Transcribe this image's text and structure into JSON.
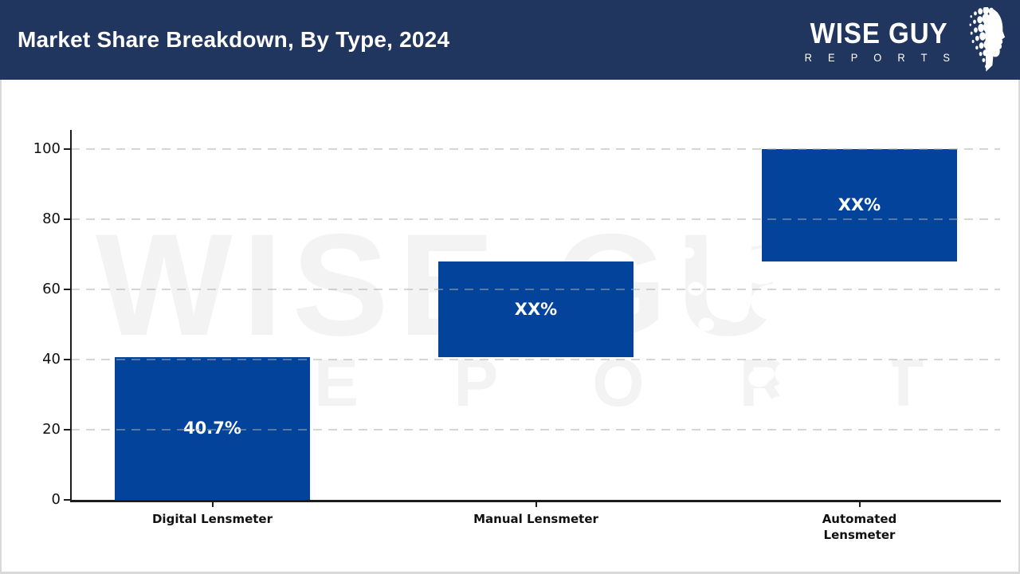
{
  "header": {
    "title": "Market Share Breakdown, By Type, 2024",
    "bg_color": "#21365e",
    "logo": {
      "line1": "WISE GUY",
      "line2": "R E P O R T S"
    }
  },
  "watermark": {
    "line1": "WISE GUY",
    "line2": "R E P O R T S"
  },
  "chart_data": {
    "type": "bar",
    "variant": "waterfall-stacked-percentage",
    "title": "Market Share Breakdown, By Type, 2024",
    "categories": [
      "Digital Lensmeter",
      "Manual Lensmeter",
      "Automated\nLensmeter"
    ],
    "bars": [
      {
        "category": "Digital Lensmeter",
        "start": 0,
        "end": 40.7,
        "label": "40.7%"
      },
      {
        "category": "Manual Lensmeter",
        "start": 40.7,
        "end": 68,
        "label": "XX%"
      },
      {
        "category": "Automated\nLensmeter",
        "start": 68,
        "end": 100,
        "label": "XX%"
      }
    ],
    "ylim": [
      0,
      100
    ],
    "yticks": [
      0,
      20,
      40,
      60,
      80,
      100
    ],
    "grid": "horizontal-dashed",
    "legend": "none",
    "bar_color": "#04439b",
    "bar_label_color": "#ffffff",
    "axis_color": "#1c1c1c",
    "gridline_color": "#dedede"
  }
}
